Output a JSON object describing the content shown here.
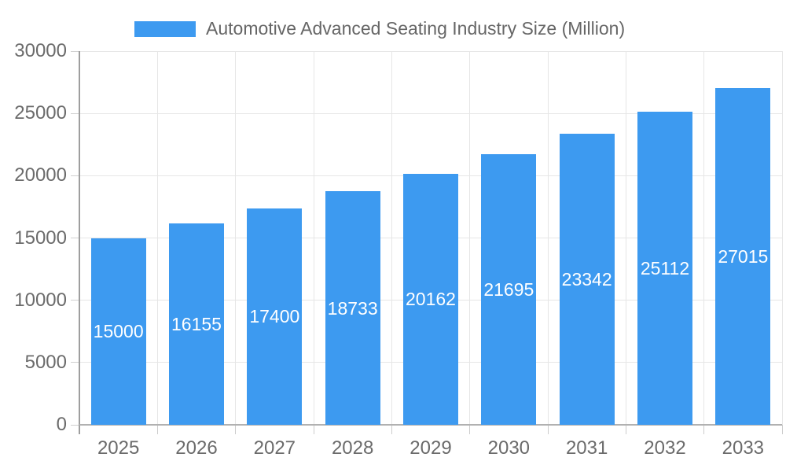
{
  "legend": {
    "label": "Automotive Advanced Seating Industry Size (Million)",
    "swatch_color": "#3d9af0"
  },
  "chart_data": {
    "type": "bar",
    "title": "Automotive Advanced Seating Industry Size (Million)",
    "categories": [
      "2025",
      "2026",
      "2027",
      "2028",
      "2029",
      "2030",
      "2031",
      "2032",
      "2033"
    ],
    "series": [
      {
        "name": "Automotive Advanced Seating Industry Size (Million)",
        "values": [
          15000,
          16155,
          17400,
          18733,
          20162,
          21695,
          23342,
          25112,
          27015
        ]
      }
    ],
    "value_labels": [
      "15000",
      "16155",
      "17400",
      "18733",
      "20162",
      "21695",
      "23342",
      "25112",
      "27015"
    ],
    "ylim": [
      0,
      30000
    ],
    "yticks": [
      0,
      5000,
      10000,
      15000,
      20000,
      25000,
      30000
    ],
    "ytick_labels": [
      "0",
      "5000",
      "10000",
      "15000",
      "20000",
      "25000",
      "30000"
    ],
    "grid": true,
    "legend_position": "top",
    "bar_color": "#3d9af0",
    "value_label_color": "#ffffff",
    "axis_text_color": "#6b6b6b",
    "xlabel": "",
    "ylabel": ""
  }
}
